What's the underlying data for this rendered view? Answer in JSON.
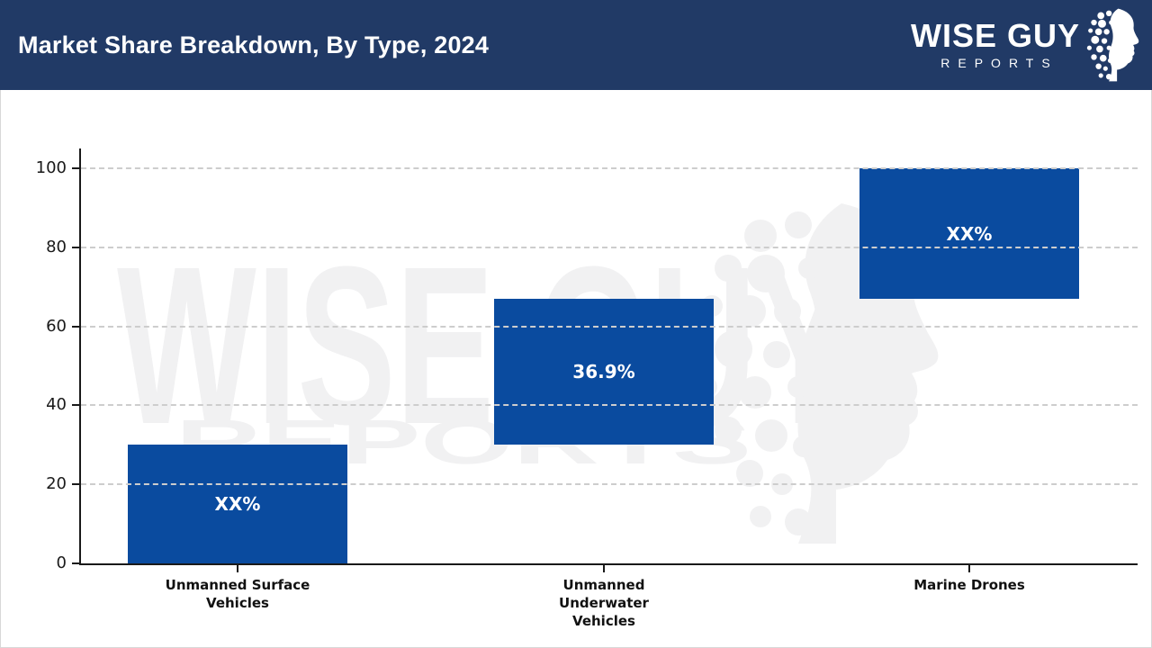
{
  "header": {
    "title": "Market Share Breakdown, By Type, 2024",
    "logo": {
      "line1": "WISE GUY",
      "line2": "REPORTS"
    }
  },
  "watermark": {
    "line1": "WISE GUY",
    "line2": "REPORTS"
  },
  "chart_data": {
    "type": "bar",
    "subtype": "waterfall",
    "title": "Market Share Breakdown, By Type, 2024",
    "categories": [
      "Unmanned Surface\nVehicles",
      "Unmanned\nUnderwater\nVehicles",
      "Marine Drones"
    ],
    "segments": [
      {
        "category": "Unmanned Surface Vehicles",
        "start": 0,
        "end": 30,
        "label": "XX%"
      },
      {
        "category": "Unmanned Underwater Vehicles",
        "start": 30,
        "end": 66.9,
        "label": "36.9%"
      },
      {
        "category": "Marine Drones",
        "start": 66.9,
        "end": 100,
        "label": "XX%"
      }
    ],
    "xlabel": "",
    "ylabel": "",
    "ylim": [
      0,
      100
    ],
    "yticks": [
      0,
      20,
      40,
      60,
      80,
      100
    ],
    "grid": "horizontal-dashed-over-bars",
    "legend": "none",
    "colors": {
      "bar": "#0a4b9f",
      "bar_label": "#ffffff",
      "grid": "#cdcdcd",
      "axis": "#1a1a1a",
      "header_bg": "#213a66",
      "watermark": "#f1f1f2"
    }
  }
}
